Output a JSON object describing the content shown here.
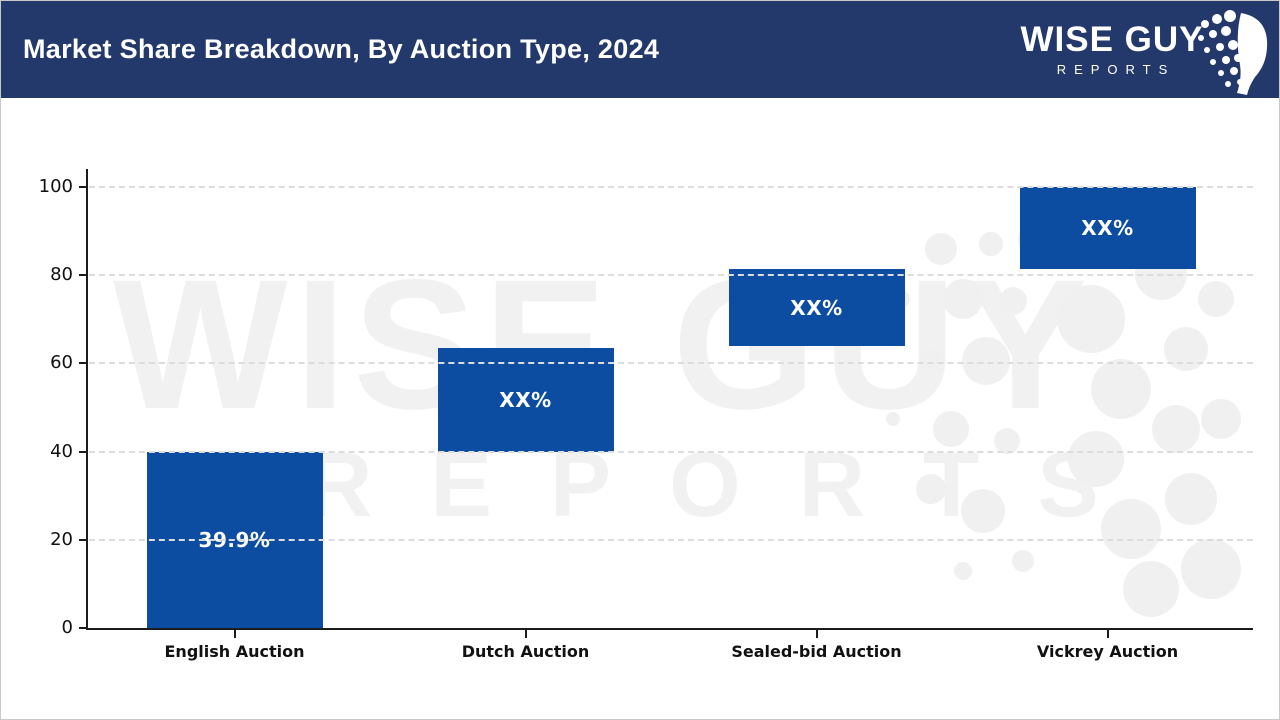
{
  "header": {
    "title": "Market Share Breakdown, By Auction Type, 2024",
    "logo": {
      "line1": "WISE GUY",
      "line2": "REPORTS"
    }
  },
  "watermark": {
    "line1": "WISE GUY",
    "line2": "REPORTS"
  },
  "colors": {
    "header_bg": "#24396b",
    "bar": "#0c4da2",
    "grid": "#dcdcdc",
    "axis": "#1c1c1c",
    "watermark": "#f1f1f1",
    "label_on_bar": "#ffffff"
  },
  "chart_data": {
    "type": "bar",
    "subtype": "waterfall",
    "title": "Market Share Breakdown, By Auction Type, 2024",
    "categories": [
      "English Auction",
      "Dutch Auction",
      "Sealed-bid Auction",
      "Vickrey Auction"
    ],
    "bars": [
      {
        "category": "English Auction",
        "from": 0,
        "to": 39.9,
        "label": "39.9%"
      },
      {
        "category": "Dutch Auction",
        "from": 39.9,
        "to": 63.5,
        "label": "XX%"
      },
      {
        "category": "Sealed-bid Auction",
        "from": 64,
        "to": 81.3,
        "label": "XX%"
      },
      {
        "category": "Vickrey Auction",
        "from": 81.4,
        "to": 100,
        "label": "XX%"
      }
    ],
    "ylim": [
      0,
      100
    ],
    "yticks": [
      0,
      20,
      40,
      60,
      80,
      100
    ],
    "xlabel": "",
    "ylabel": "",
    "grid": "horizontal-dashed",
    "legend": "none",
    "bar_color": "#0c4da2"
  }
}
